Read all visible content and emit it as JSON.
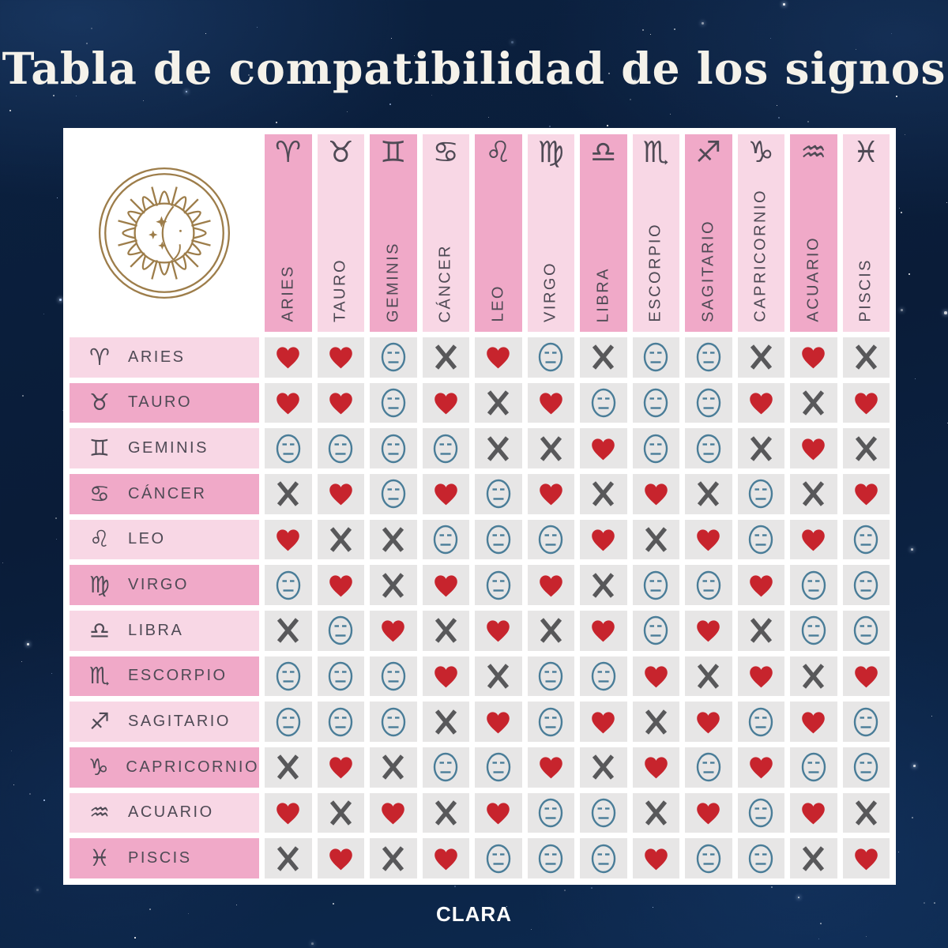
{
  "title": "Tabla de compatibilidad de los signos",
  "brand": "CLARA",
  "logo": {
    "name": "sun-moon-emblem"
  },
  "colors": {
    "background_navy": "#0b2140",
    "pink_dark": "#f0a9c8",
    "pink_light": "#f8d7e5",
    "cell_gray": "#e7e6e6",
    "heart_red": "#c7242d",
    "face_blue": "#4a7d98",
    "x_gray": "#58585a",
    "label_dark": "#4f4a55",
    "logo_gold": "#9d7d4a",
    "title_cream": "#f5f2ea"
  },
  "chart_data": {
    "type": "heatmap",
    "title": "Tabla de compatibilidad de los signos",
    "layout": {
      "rows": 12,
      "cols": 12,
      "row_headers_left": true,
      "col_headers_top": true,
      "legend": "none"
    },
    "cell_icons": [
      "heart",
      "neutral-face",
      "x"
    ],
    "signs": [
      {
        "label": "ARIES",
        "symbol": "♈"
      },
      {
        "label": "TAURO",
        "symbol": "♉"
      },
      {
        "label": "GEMINIS",
        "symbol": "♊"
      },
      {
        "label": "CÁNCER",
        "symbol": "♋"
      },
      {
        "label": "LEO",
        "symbol": "♌"
      },
      {
        "label": "VIRGO",
        "symbol": "♍"
      },
      {
        "label": "LIBRA",
        "symbol": "♎"
      },
      {
        "label": "ESCORPIO",
        "symbol": "♏"
      },
      {
        "label": "SAGITARIO",
        "symbol": "♐"
      },
      {
        "label": "CAPRICORNIO",
        "symbol": "♑"
      },
      {
        "label": "ACUARIO",
        "symbol": "♒"
      },
      {
        "label": "PISCIS",
        "symbol": "♓"
      }
    ],
    "matrix": [
      [
        "heart",
        "heart",
        "neutral",
        "x",
        "heart",
        "neutral",
        "x",
        "neutral",
        "neutral",
        "x",
        "heart",
        "x"
      ],
      [
        "heart",
        "heart",
        "neutral",
        "heart",
        "x",
        "heart",
        "neutral",
        "neutral",
        "neutral",
        "heart",
        "x",
        "heart"
      ],
      [
        "neutral",
        "neutral",
        "neutral",
        "neutral",
        "x",
        "x",
        "heart",
        "neutral",
        "neutral",
        "x",
        "heart",
        "x"
      ],
      [
        "x",
        "heart",
        "neutral",
        "heart",
        "neutral",
        "heart",
        "x",
        "heart",
        "x",
        "neutral",
        "x",
        "heart"
      ],
      [
        "heart",
        "x",
        "x",
        "neutral",
        "neutral",
        "neutral",
        "heart",
        "x",
        "heart",
        "neutral",
        "heart",
        "neutral"
      ],
      [
        "neutral",
        "heart",
        "x",
        "heart",
        "neutral",
        "heart",
        "x",
        "neutral",
        "neutral",
        "heart",
        "neutral",
        "neutral"
      ],
      [
        "x",
        "neutral",
        "heart",
        "x",
        "heart",
        "x",
        "heart",
        "neutral",
        "heart",
        "x",
        "neutral",
        "neutral"
      ],
      [
        "neutral",
        "neutral",
        "neutral",
        "heart",
        "x",
        "neutral",
        "neutral",
        "heart",
        "x",
        "heart",
        "x",
        "heart"
      ],
      [
        "neutral",
        "neutral",
        "neutral",
        "x",
        "heart",
        "neutral",
        "heart",
        "x",
        "heart",
        "neutral",
        "heart",
        "neutral"
      ],
      [
        "x",
        "heart",
        "x",
        "neutral",
        "neutral",
        "heart",
        "x",
        "heart",
        "neutral",
        "heart",
        "neutral",
        "neutral"
      ],
      [
        "heart",
        "x",
        "heart",
        "x",
        "heart",
        "neutral",
        "neutral",
        "x",
        "heart",
        "neutral",
        "heart",
        "x"
      ],
      [
        "x",
        "heart",
        "x",
        "heart",
        "neutral",
        "neutral",
        "neutral",
        "heart",
        "neutral",
        "neutral",
        "x",
        "heart"
      ]
    ]
  }
}
